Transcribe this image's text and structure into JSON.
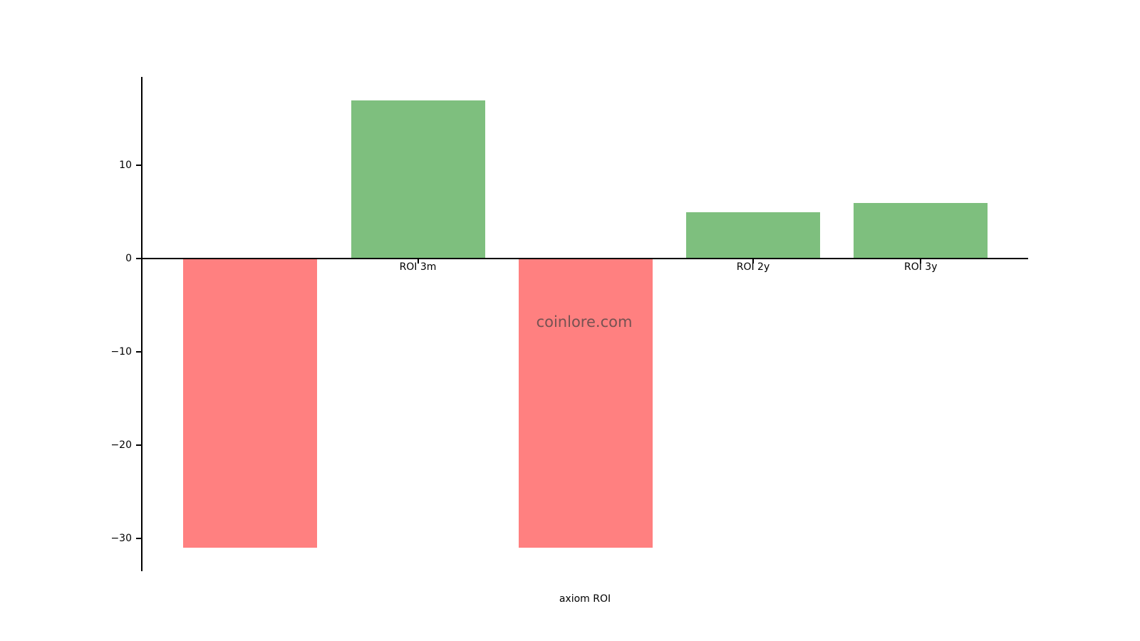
{
  "watermark": {
    "text": "coinlore.com"
  },
  "chart_data": {
    "type": "bar",
    "title": "",
    "xlabel": "axiom ROI",
    "ylabel": "",
    "categories": [
      "",
      "ROI 3m",
      "",
      "ROI 2y",
      "ROI 3y"
    ],
    "values": [
      -31,
      17,
      -31,
      5,
      6
    ],
    "label_visible": [
      false,
      true,
      false,
      true,
      true
    ],
    "positive_color": "#7ebf7e",
    "negative_color": "#ff8080",
    "axis_color": "#000000",
    "ylim": [
      -33.5,
      19.5
    ],
    "yticks": [
      {
        "value": 10,
        "label": "10"
      },
      {
        "value": 0,
        "label": "0"
      },
      {
        "value": -10,
        "label": "−10"
      },
      {
        "value": -20,
        "label": "−20"
      },
      {
        "value": -30,
        "label": "−30"
      }
    ],
    "grid": false,
    "legend": null
  }
}
